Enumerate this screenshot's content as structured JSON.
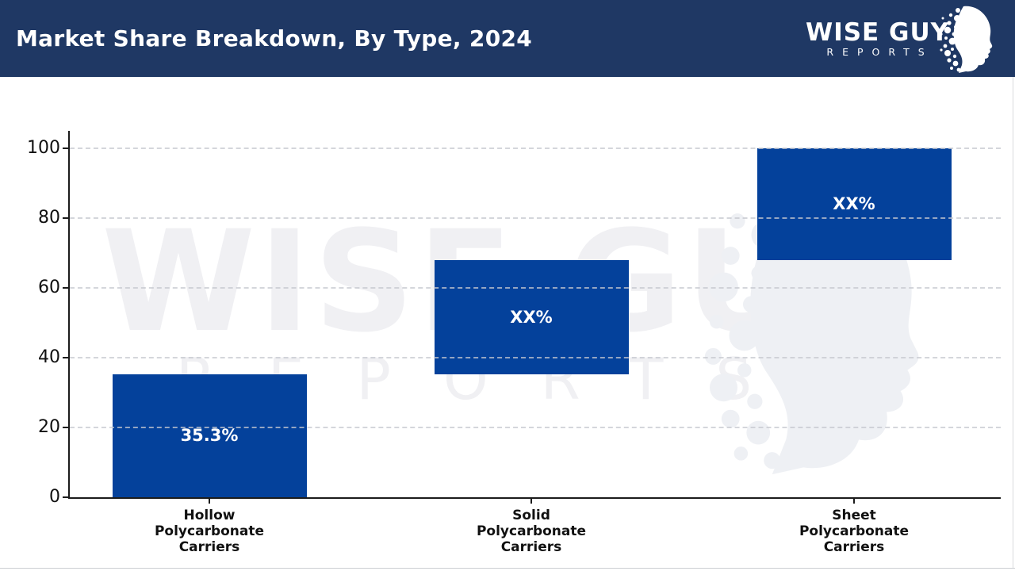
{
  "header": {
    "title": "Market Share Breakdown, By Type, 2024",
    "logo": {
      "brand": "WISE GUY",
      "sub": "REPORTS"
    }
  },
  "watermark": {
    "brand": "WISE GUY",
    "sub": "REPORTS"
  },
  "colors": {
    "header_bg": "#1f3864",
    "bar_fill": "#04419b",
    "bar_label": "#ffffff",
    "axis": "#1c1c1c",
    "gridline": "#e2e2e6",
    "watermark": "#f0f0f3"
  },
  "chart_data": {
    "type": "bar",
    "subtype": "stacked-waterfall-percentage",
    "title": "Market Share Breakdown, By Type, 2024",
    "categories": [
      [
        "Hollow",
        "Polycarbonate",
        "Carriers"
      ],
      [
        "Solid",
        "Polycarbonate",
        "Carriers"
      ],
      [
        "Sheet",
        "Polycarbonate",
        "Carriers"
      ]
    ],
    "segments": [
      {
        "category": "Hollow Polycarbonate Carriers",
        "label": "35.3%",
        "start": 0,
        "end": 35.3,
        "value": 35.3,
        "masked": false
      },
      {
        "category": "Solid Polycarbonate Carriers",
        "label": "XX%",
        "start": 35.3,
        "end": 68,
        "value": 32.7,
        "masked": true
      },
      {
        "category": "Sheet Polycarbonate Carriers",
        "label": "XX%",
        "start": 68,
        "end": 100,
        "value": 32.0,
        "masked": true
      }
    ],
    "ylim": [
      0,
      100
    ],
    "yticks": [
      0,
      20,
      40,
      60,
      80,
      100
    ],
    "ytick_labels": [
      "0",
      "20",
      "40",
      "60",
      "80",
      "100"
    ],
    "xlabel": "",
    "ylabel": "",
    "grid": "horizontal-dashed",
    "legend": "none"
  }
}
